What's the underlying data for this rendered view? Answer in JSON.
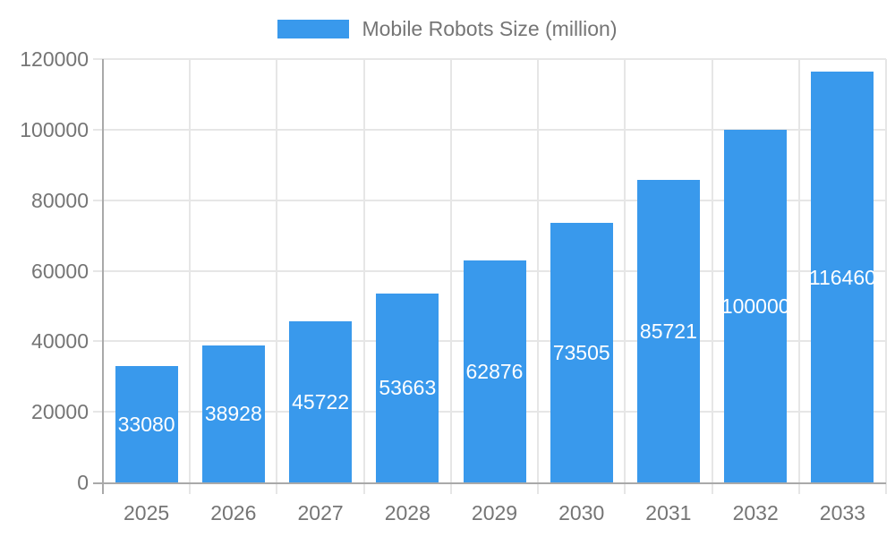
{
  "chart_data": {
    "type": "bar",
    "title": "",
    "series_name": "Mobile Robots Size (million)",
    "legend_position": "top",
    "categories": [
      "2025",
      "2026",
      "2027",
      "2028",
      "2029",
      "2030",
      "2031",
      "2032",
      "2033"
    ],
    "values": [
      33080,
      38928,
      45722,
      53663,
      62876,
      73505,
      85721,
      100000,
      116460
    ],
    "data_labels": [
      "33080",
      "38928",
      "45722",
      "53663",
      "62876",
      "73505",
      "85721",
      "100000",
      "116460"
    ],
    "xlabel": "",
    "ylabel": "",
    "ylim": [
      0,
      120000
    ],
    "ytick_step": 20000,
    "ytick_labels": [
      "0",
      "20000",
      "40000",
      "60000",
      "80000",
      "100000",
      "120000"
    ],
    "grid": true,
    "colors": {
      "bar": "#3999EC",
      "axis_line": "#A9A9A9",
      "gridline": "#E6E6E6",
      "tick_label": "#757575",
      "value_label": "#FFFFFF",
      "background": "#FFFFFF"
    }
  }
}
